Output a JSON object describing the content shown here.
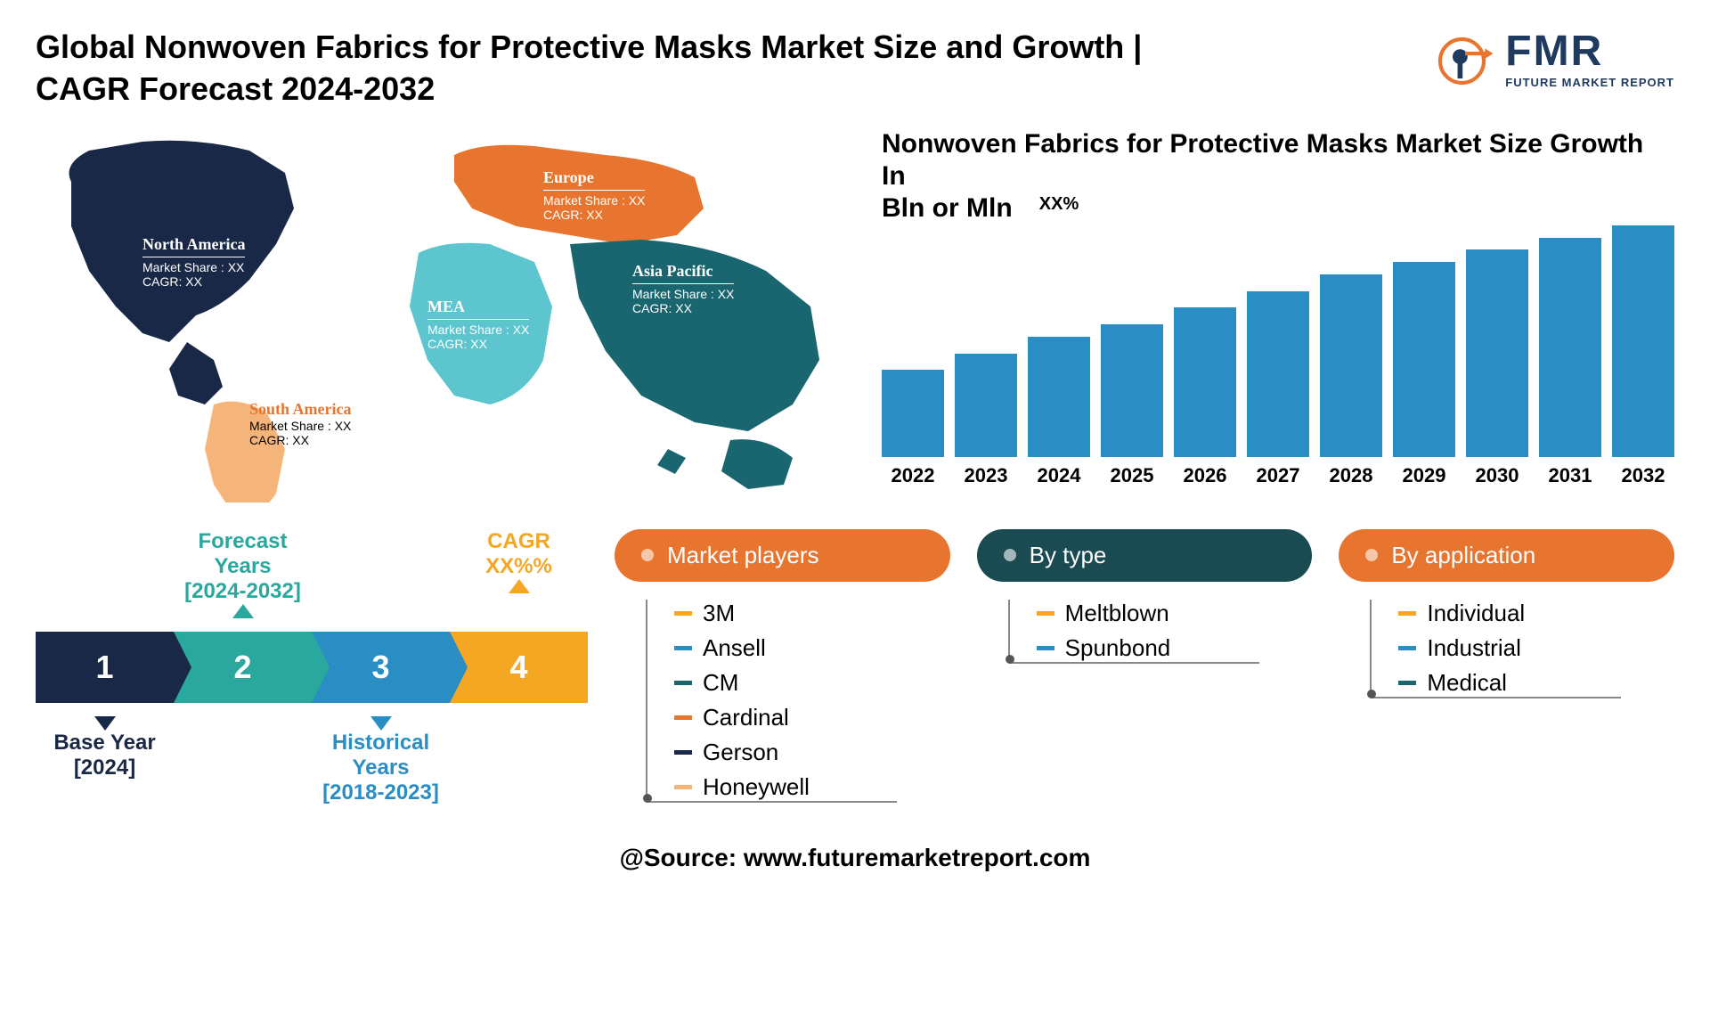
{
  "title": "Global Nonwoven Fabrics for Protective Masks Market Size and Growth | CAGR Forecast 2024-2032",
  "logo": {
    "main": "FMR",
    "sub": "FUTURE MARKET REPORT"
  },
  "map": {
    "regions": [
      {
        "name": "North America",
        "share": "Market Share : XX",
        "cagr": "CAGR: XX",
        "color": "#1a2847"
      },
      {
        "name": "South America",
        "share": "Market Share : XX",
        "cagr": "CAGR: XX",
        "color": "#f5b57a"
      },
      {
        "name": "Europe",
        "share": "Market Share : XX",
        "cagr": "CAGR: XX",
        "color": "#e8752f"
      },
      {
        "name": "MEA",
        "share": "Market Share : XX",
        "cagr": "CAGR: XX",
        "color": "#5cc5ce"
      },
      {
        "name": "Asia Pacific",
        "share": "Market Share : XX",
        "cagr": "CAGR: XX",
        "color": "#1a6670"
      }
    ]
  },
  "chart": {
    "title": "Nonwoven Fabrics for Protective Masks Market Size Growth In\nBln or Mln",
    "years": [
      "2022",
      "2023",
      "2024",
      "2025",
      "2026",
      "2027",
      "2028",
      "2029",
      "2030",
      "2031",
      "2032"
    ],
    "values": [
      105,
      125,
      145,
      160,
      180,
      200,
      220,
      235,
      250,
      265,
      280
    ],
    "bar_color": "#2a8ec4",
    "label_2024": "XX%",
    "label_2032": "XX%"
  },
  "timeline": {
    "forecast": {
      "label": "Forecast Years",
      "range": "[2024-2032]",
      "color": "#2aa89e"
    },
    "cagr": {
      "label": "CAGR",
      "value": "XX%%",
      "color": "#f5a623"
    },
    "base": {
      "label": "Base Year",
      "range": "[2024]",
      "color": "#1a2847"
    },
    "historical": {
      "label": "Historical Years",
      "range": "[2018-2023]",
      "color": "#2a8ec4"
    },
    "segments": [
      {
        "num": "1",
        "color": "#1a2847"
      },
      {
        "num": "2",
        "color": "#2aa89e"
      },
      {
        "num": "3",
        "color": "#2a8ec4"
      },
      {
        "num": "4",
        "color": "#f5a623"
      }
    ]
  },
  "cards": {
    "players": {
      "title": "Market players",
      "bg": "#e8752f",
      "items": [
        {
          "t": "3M",
          "c": "#f5a623"
        },
        {
          "t": "Ansell",
          "c": "#2a8ec4"
        },
        {
          "t": "CM",
          "c": "#1a6670"
        },
        {
          "t": "Cardinal",
          "c": "#e8752f"
        },
        {
          "t": "Gerson",
          "c": "#1a2847"
        },
        {
          "t": "Honeywell",
          "c": "#f5b57a"
        }
      ]
    },
    "type": {
      "title": "By type",
      "bg": "#1a4a52",
      "items": [
        {
          "t": "Meltblown",
          "c": "#f5a623"
        },
        {
          "t": "Spunbond",
          "c": "#2a8ec4"
        }
      ]
    },
    "application": {
      "title": "By application",
      "bg": "#e8752f",
      "items": [
        {
          "t": "Individual",
          "c": "#f5a623"
        },
        {
          "t": "Industrial",
          "c": "#2a8ec4"
        },
        {
          "t": "Medical",
          "c": "#1a6670"
        }
      ]
    }
  },
  "source": "@Source: www.futuremarketreport.com"
}
